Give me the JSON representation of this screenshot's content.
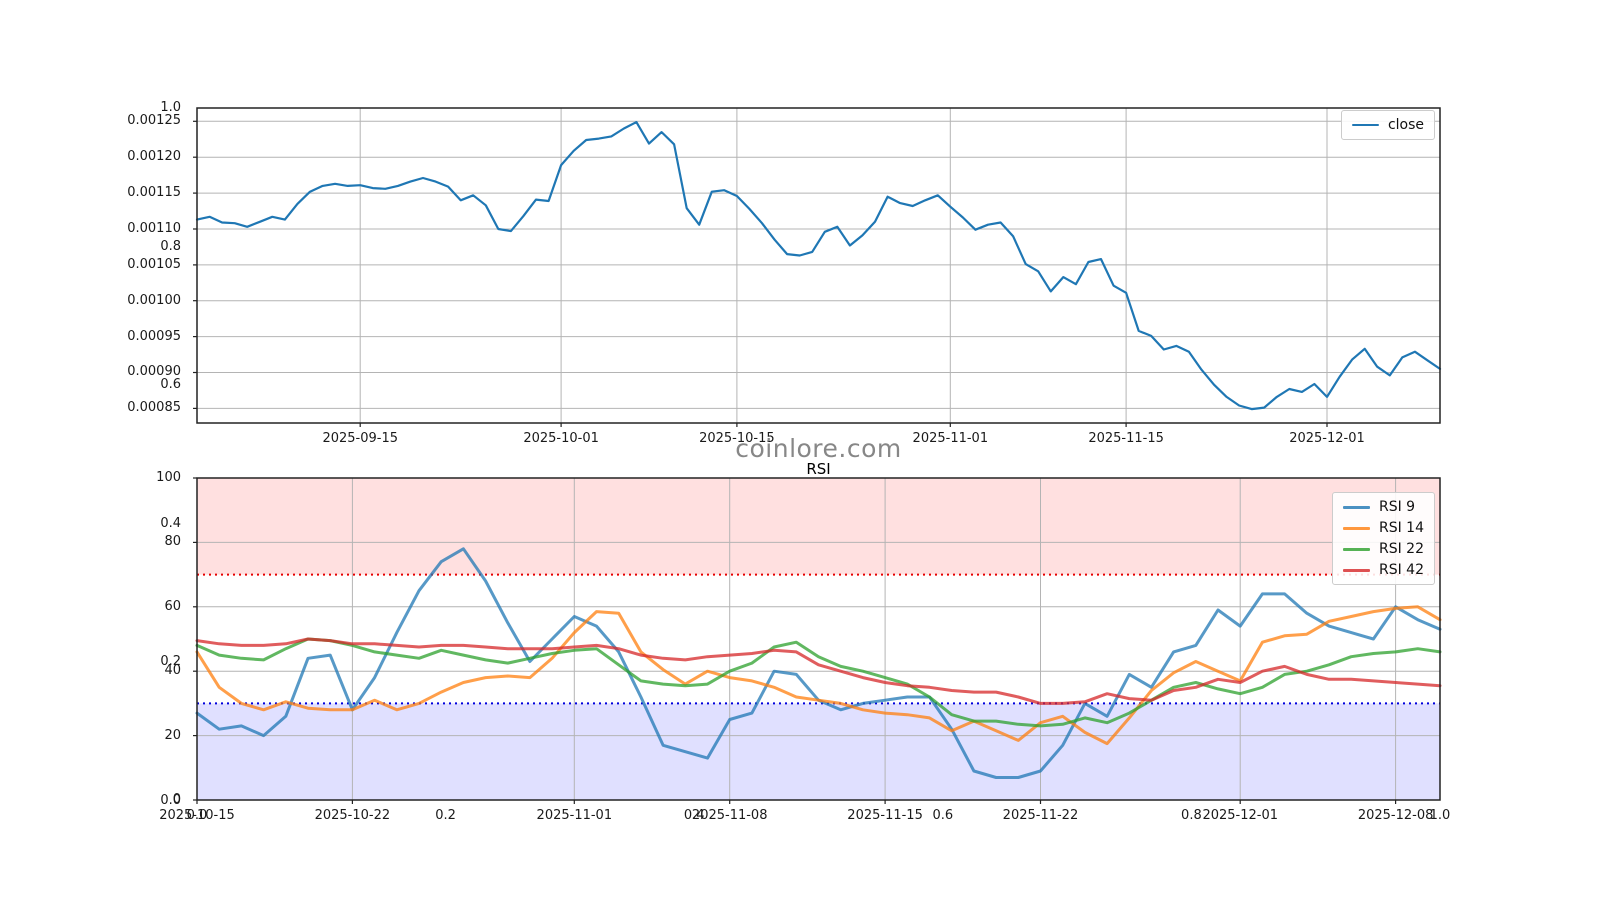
{
  "figure": {
    "watermark": "coinlore.com"
  },
  "background_axes": {
    "x_tick_labels": [
      "0.0",
      "0.2",
      "0.4",
      "0.6",
      "0.8",
      "1.0"
    ],
    "y_tick_labels": [
      "0.0",
      "0.2",
      "0.4",
      "0.6",
      "0.8",
      "1.0"
    ]
  },
  "chart_data": [
    {
      "id": "price",
      "type": "line",
      "title": "",
      "grid": true,
      "legend": {
        "position": "upper right",
        "entries": [
          {
            "label": "close",
            "color": "#1f77b4"
          }
        ]
      },
      "x_tick_labels": [
        "2025-09-15",
        "2025-10-01",
        "2025-10-15",
        "2025-11-01",
        "2025-11-15",
        "2025-12-01"
      ],
      "y_tick_labels": [
        "0.00085",
        "0.00090",
        "0.00095",
        "0.00100",
        "0.00105",
        "0.00110",
        "0.00115",
        "0.00120",
        "0.00125"
      ],
      "ylim": [
        0.0008296,
        0.0012686
      ],
      "x_dates": [
        "2025-09-02",
        "2025-09-03",
        "2025-09-04",
        "2025-09-05",
        "2025-09-06",
        "2025-09-07",
        "2025-09-08",
        "2025-09-09",
        "2025-09-10",
        "2025-09-11",
        "2025-09-12",
        "2025-09-13",
        "2025-09-14",
        "2025-09-15",
        "2025-09-16",
        "2025-09-17",
        "2025-09-18",
        "2025-09-19",
        "2025-09-20",
        "2025-09-21",
        "2025-09-22",
        "2025-09-23",
        "2025-09-24",
        "2025-09-25",
        "2025-09-26",
        "2025-09-27",
        "2025-09-28",
        "2025-09-29",
        "2025-09-30",
        "2025-10-01",
        "2025-10-02",
        "2025-10-03",
        "2025-10-04",
        "2025-10-05",
        "2025-10-06",
        "2025-10-07",
        "2025-10-08",
        "2025-10-09",
        "2025-10-10",
        "2025-10-11",
        "2025-10-12",
        "2025-10-13",
        "2025-10-14",
        "2025-10-15",
        "2025-10-16",
        "2025-10-17",
        "2025-10-18",
        "2025-10-19",
        "2025-10-20",
        "2025-10-21",
        "2025-10-22",
        "2025-10-23",
        "2025-10-24",
        "2025-10-25",
        "2025-10-26",
        "2025-10-27",
        "2025-10-28",
        "2025-10-29",
        "2025-10-30",
        "2025-10-31",
        "2025-11-01",
        "2025-11-02",
        "2025-11-03",
        "2025-11-04",
        "2025-11-05",
        "2025-11-06",
        "2025-11-07",
        "2025-11-08",
        "2025-11-09",
        "2025-11-10",
        "2025-11-11",
        "2025-11-12",
        "2025-11-13",
        "2025-11-14",
        "2025-11-15",
        "2025-11-16",
        "2025-11-17",
        "2025-11-18",
        "2025-11-19",
        "2025-11-20",
        "2025-11-21",
        "2025-11-22",
        "2025-11-23",
        "2025-11-24",
        "2025-11-25",
        "2025-11-26",
        "2025-11-27",
        "2025-11-28",
        "2025-11-29",
        "2025-11-30",
        "2025-12-01",
        "2025-12-02",
        "2025-12-03",
        "2025-12-04",
        "2025-12-05",
        "2025-12-06",
        "2025-12-07",
        "2025-12-08",
        "2025-12-09",
        "2025-12-10"
      ],
      "series": [
        {
          "name": "close",
          "color": "#1f77b4",
          "width": 2.2,
          "opacity": 1,
          "values": [
            0.001113,
            0.001117,
            0.001109,
            0.001108,
            0.001103,
            0.00111,
            0.001117,
            0.001113,
            0.001135,
            0.001152,
            0.00116,
            0.001163,
            0.00116,
            0.001161,
            0.001157,
            0.001156,
            0.00116,
            0.001166,
            0.001171,
            0.001166,
            0.001159,
            0.00114,
            0.001147,
            0.001133,
            0.0011,
            0.001097,
            0.001118,
            0.001141,
            0.001139,
            0.001189,
            0.001209,
            0.001224,
            0.001226,
            0.001229,
            0.00124,
            0.001249,
            0.001219,
            0.001235,
            0.001218,
            0.001129,
            0.001106,
            0.001152,
            0.001154,
            0.001146,
            0.001128,
            0.001108,
            0.001085,
            0.001065,
            0.001063,
            0.001068,
            0.001096,
            0.001103,
            0.001077,
            0.001091,
            0.00111,
            0.001145,
            0.001136,
            0.001132,
            0.00114,
            0.001147,
            0.001131,
            0.001116,
            0.001099,
            0.001106,
            0.001109,
            0.00109,
            0.001051,
            0.001041,
            0.001013,
            0.001033,
            0.001023,
            0.001054,
            0.001058,
            0.001021,
            0.001011,
            0.000958,
            0.000951,
            0.000932,
            0.000937,
            0.000929,
            0.000904,
            0.000883,
            0.000866,
            0.000854,
            0.000849,
            0.000851,
            0.000866,
            0.000877,
            0.000873,
            0.000884,
            0.000866,
            0.000894,
            0.000918,
            0.000933,
            0.000908,
            0.000896,
            0.000921,
            0.000929,
            0.000917,
            0.000905
          ]
        }
      ]
    },
    {
      "id": "rsi",
      "type": "line",
      "title": "RSI",
      "grid": true,
      "legend": {
        "position": "upper right",
        "entries": [
          {
            "label": "RSI 9",
            "color": "#1f77b4"
          },
          {
            "label": "RSI 14",
            "color": "#ff7f0e"
          },
          {
            "label": "RSI 22",
            "color": "#2ca02c"
          },
          {
            "label": "RSI 42",
            "color": "#d62728"
          }
        ]
      },
      "x_tick_labels": [
        "2025-10-15",
        "2025-10-22",
        "2025-11-01",
        "2025-11-08",
        "2025-11-15",
        "2025-11-22",
        "2025-12-01",
        "2025-12-08"
      ],
      "y_tick_labels": [
        "0",
        "20",
        "40",
        "60",
        "80",
        "100"
      ],
      "ylim": [
        0,
        100
      ],
      "bands": [
        {
          "name": "overbought-band",
          "from": 70,
          "to": 100,
          "color": "rgba(255,0,0,0.12)"
        },
        {
          "name": "oversold-band",
          "from": 0,
          "to": 30,
          "color": "rgba(0,0,255,0.12)"
        }
      ],
      "hlines": [
        {
          "name": "overbought-line",
          "y": 70,
          "color": "#e60000"
        },
        {
          "name": "oversold-line",
          "y": 30,
          "color": "#0000dc"
        }
      ],
      "x_dates": [
        "2025-10-15",
        "2025-10-16",
        "2025-10-17",
        "2025-10-18",
        "2025-10-19",
        "2025-10-20",
        "2025-10-21",
        "2025-10-22",
        "2025-10-23",
        "2025-10-24",
        "2025-10-25",
        "2025-10-26",
        "2025-10-27",
        "2025-10-28",
        "2025-10-29",
        "2025-10-30",
        "2025-10-31",
        "2025-11-01",
        "2025-11-02",
        "2025-11-03",
        "2025-11-04",
        "2025-11-05",
        "2025-11-06",
        "2025-11-07",
        "2025-11-08",
        "2025-11-09",
        "2025-11-10",
        "2025-11-11",
        "2025-11-12",
        "2025-11-13",
        "2025-11-14",
        "2025-11-15",
        "2025-11-16",
        "2025-11-17",
        "2025-11-18",
        "2025-11-19",
        "2025-11-20",
        "2025-11-21",
        "2025-11-22",
        "2025-11-23",
        "2025-11-24",
        "2025-11-25",
        "2025-11-26",
        "2025-11-27",
        "2025-11-28",
        "2025-11-29",
        "2025-11-30",
        "2025-12-01",
        "2025-12-02",
        "2025-12-03",
        "2025-12-04",
        "2025-12-05",
        "2025-12-06",
        "2025-12-07",
        "2025-12-08",
        "2025-12-09",
        "2025-12-10"
      ],
      "series": [
        {
          "name": "RSI 9",
          "color": "#1f77b4",
          "width": 3,
          "opacity": 0.75,
          "values": [
            27,
            22,
            23,
            20,
            26,
            44,
            45,
            28,
            38,
            52,
            65,
            74,
            78,
            68,
            55,
            43,
            50,
            57,
            54,
            46,
            32,
            17,
            15,
            13,
            25,
            27,
            40,
            39,
            31,
            28,
            30,
            31,
            32,
            32,
            22,
            9,
            7,
            7,
            9,
            17,
            30,
            26,
            39,
            35,
            46,
            48,
            59,
            54,
            64,
            64,
            58,
            54,
            52,
            50,
            60,
            56,
            53
          ]
        },
        {
          "name": "RSI 14",
          "color": "#ff7f0e",
          "width": 3,
          "opacity": 0.75,
          "values": [
            46,
            35,
            30,
            28,
            30.5,
            28.5,
            28,
            28,
            31,
            28,
            30,
            33.5,
            36.5,
            38,
            38.5,
            38,
            44,
            52,
            58.5,
            58,
            46,
            40.5,
            36,
            40,
            38,
            37,
            35,
            32,
            31,
            30,
            28,
            27,
            26.5,
            25.5,
            21.5,
            24.5,
            21.5,
            18.5,
            24,
            26,
            21,
            17.5,
            25.5,
            34,
            39.5,
            43,
            40,
            37,
            49,
            51,
            51.5,
            55.5,
            57,
            58.5,
            59.5,
            60,
            56
          ]
        },
        {
          "name": "RSI 22",
          "color": "#2ca02c",
          "width": 3,
          "opacity": 0.75,
          "values": [
            48,
            45,
            44,
            43.5,
            47,
            50,
            49.5,
            48,
            46,
            45,
            44,
            46.5,
            45,
            43.5,
            42.5,
            44,
            45.5,
            46.5,
            47,
            42,
            37,
            36,
            35.5,
            36,
            40,
            42.5,
            47.5,
            49,
            44.5,
            41.5,
            40,
            38,
            36,
            32,
            26.5,
            24.5,
            24.5,
            23.5,
            23,
            23.5,
            25.5,
            24,
            27,
            31,
            35,
            36.5,
            34.5,
            33,
            35,
            39,
            40,
            42,
            44.5,
            45.5,
            46,
            47,
            46
          ]
        },
        {
          "name": "RSI 42",
          "color": "#d62728",
          "width": 3,
          "opacity": 0.75,
          "values": [
            49.5,
            48.5,
            48,
            48,
            48.5,
            50,
            49.5,
            48.5,
            48.5,
            48,
            47.5,
            48,
            48,
            47.5,
            47,
            47,
            47,
            47.5,
            48,
            47,
            45,
            44,
            43.5,
            44.5,
            45,
            45.5,
            46.5,
            46,
            42,
            40,
            38,
            36.5,
            35.5,
            35,
            34,
            33.5,
            33.5,
            32,
            30,
            30,
            30.5,
            33,
            31.5,
            31,
            34,
            35,
            37.5,
            36.5,
            40,
            41.5,
            39,
            37.5,
            37.5,
            37,
            36.5,
            36,
            35.5
          ]
        }
      ]
    }
  ]
}
